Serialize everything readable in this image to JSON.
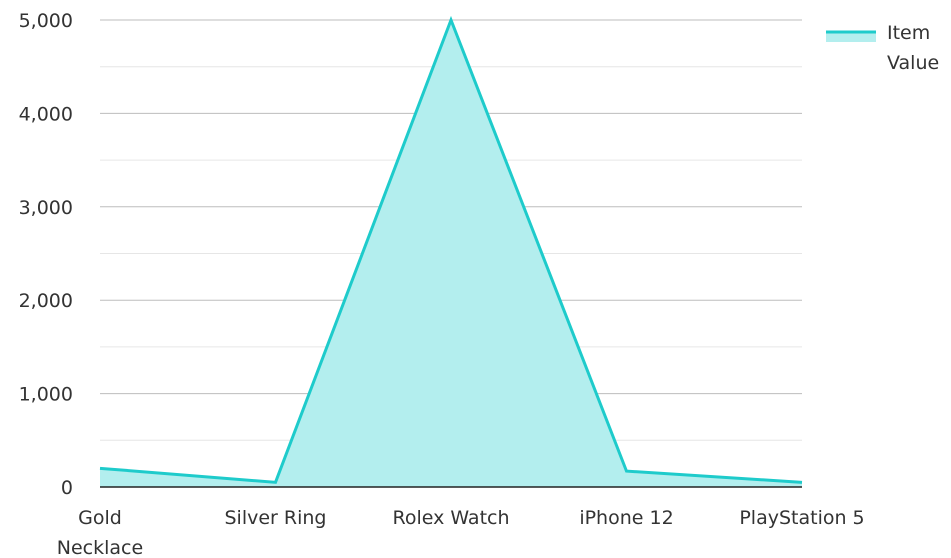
{
  "chart_data": {
    "type": "area",
    "categories": [
      "Gold Necklace",
      "Silver Ring",
      "Rolex Watch",
      "iPhone 12",
      "PlayStation 5"
    ],
    "series": [
      {
        "name": "Item Value",
        "values": [
          200,
          50,
          5000,
          170,
          50
        ]
      }
    ],
    "ylim": [
      0,
      5000
    ],
    "yticks": [
      0,
      1000,
      2000,
      3000,
      4000,
      5000
    ],
    "ytick_labels": [
      "0",
      "1,000",
      "2,000",
      "3,000",
      "4,000",
      "5,000"
    ],
    "x_label_lines": [
      [
        "Gold",
        "Necklace"
      ],
      [
        "Silver Ring"
      ],
      [
        "Rolex Watch"
      ],
      [
        "iPhone 12"
      ],
      [
        "PlayStation 5"
      ]
    ],
    "legend_lines": [
      "Item",
      "Value"
    ],
    "grid": true,
    "legend_position": "top-right",
    "colors": {
      "line": "#1ecbcb",
      "fill": "#b3eeee",
      "grid_major": "#bdbdbd",
      "grid_minor": "#e6e6e6",
      "axis": "#222222"
    }
  }
}
